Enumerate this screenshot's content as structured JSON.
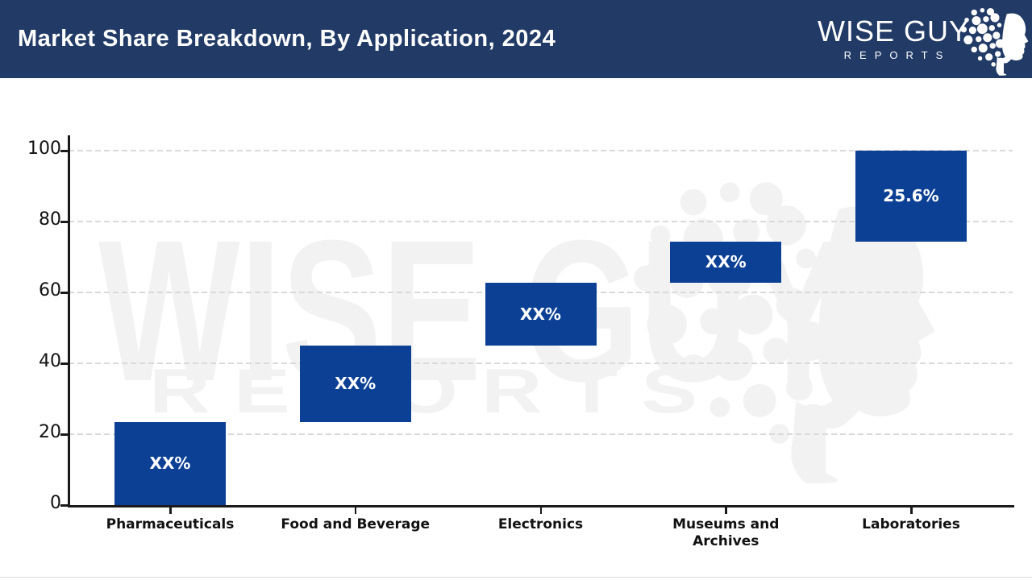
{
  "header": {
    "title": "Market Share Breakdown, By Application, 2024",
    "logo": {
      "line1": "WISE GUY",
      "line2": "REPORTS"
    }
  },
  "watermark": {
    "line1": "WISE GUY",
    "line2": "R E P O R T S"
  },
  "chart_data": {
    "type": "bar",
    "subtype": "floating-waterfall",
    "title": "Market Share Breakdown, By Application, 2024",
    "categories": [
      "Pharmaceuticals",
      "Food and Beverage",
      "Electronics",
      "Museums and Archives",
      "Laboratories"
    ],
    "category_lines": [
      [
        "Pharmaceuticals"
      ],
      [
        "Food and Beverage"
      ],
      [
        "Electronics"
      ],
      [
        "Museums and",
        "Archives"
      ],
      [
        "Laboratories"
      ]
    ],
    "series": [
      {
        "name": "Market share (%)",
        "segments": [
          {
            "category": "Pharmaceuticals",
            "start": 0,
            "end": 23.5,
            "value": 23.5,
            "bar_label": "XX%"
          },
          {
            "category": "Food and Beverage",
            "start": 23.5,
            "end": 45.0,
            "value": 21.5,
            "bar_label": "XX%"
          },
          {
            "category": "Electronics",
            "start": 45.0,
            "end": 62.8,
            "value": 17.8,
            "bar_label": "XX%"
          },
          {
            "category": "Museums and Archives",
            "start": 62.8,
            "end": 74.4,
            "value": 11.6,
            "bar_label": "XX%"
          },
          {
            "category": "Laboratories",
            "start": 74.4,
            "end": 100.0,
            "value": 25.6,
            "bar_label": "25.6%"
          }
        ]
      }
    ],
    "xlabel": "",
    "ylabel": "",
    "yticks": [
      0,
      20,
      40,
      60,
      80,
      100
    ],
    "ylim": [
      0,
      104.5
    ],
    "grid": "horizontal-dashed",
    "legend": "none",
    "colors": {
      "bar": "#0c4094",
      "bar_label": "#ffffff",
      "grid": "#d9d9d9",
      "axis": "#1a1a1a",
      "tick_label": "#111111"
    }
  },
  "colors": {
    "header_bg": "#213a66",
    "page_bg": "#ffffff",
    "watermark": "#f2f2f2"
  }
}
